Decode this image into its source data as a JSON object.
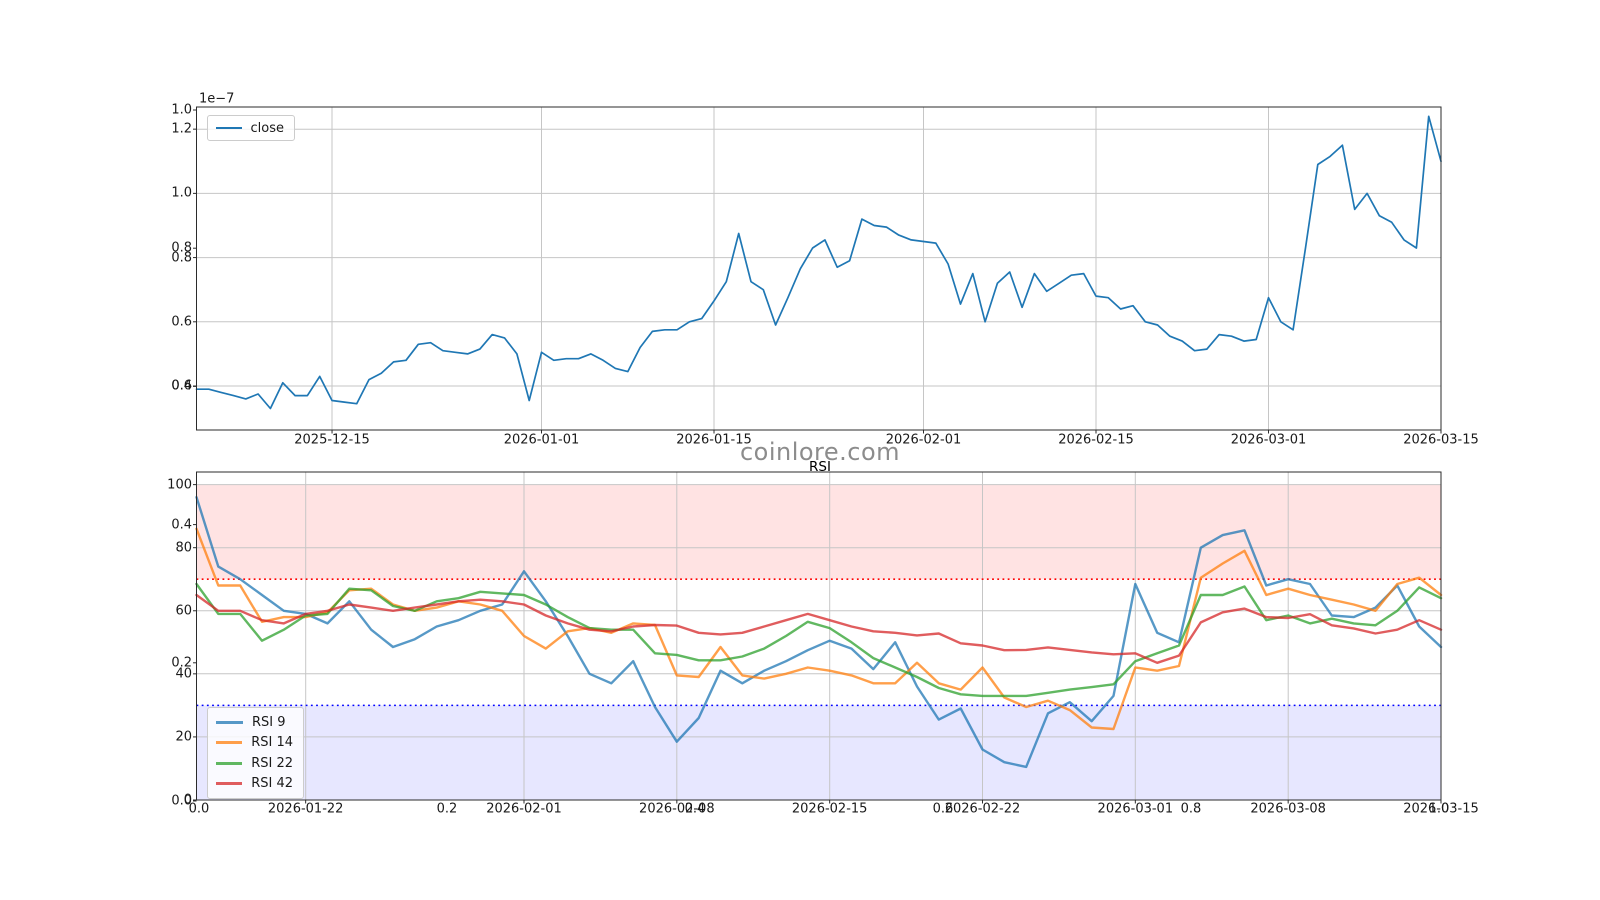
{
  "watermark": {
    "text": "coinlore.com",
    "color": "#8c8c8c"
  },
  "overlay_axis": {
    "ytick_labels": [
      "1.0",
      "0.8",
      "0.6",
      "0.4",
      "0.2",
      "0.0"
    ],
    "xtick_labels": [
      "0.0",
      "0.2",
      "0.4",
      "0.6",
      "0.8",
      "1.0"
    ]
  },
  "chart_data": [
    {
      "type": "line",
      "title": "",
      "xlabel": "",
      "ylabel": "",
      "offset_text": "1e−7",
      "legend_position": "upper left",
      "grid": true,
      "x_start": "2025-12-04",
      "x_end": "2026-03-15",
      "x_freq": "daily",
      "xtick_labels": [
        "2025-12-15",
        "2026-01-01",
        "2026-01-15",
        "2026-02-01",
        "2026-02-15",
        "2026-03-01",
        "2026-03-15"
      ],
      "xtick_day_offsets": [
        11,
        28,
        42,
        59,
        73,
        87,
        101
      ],
      "ytick_labels": [
        "0.4",
        "0.6",
        "0.8",
        "1.0",
        "1.2"
      ],
      "ytick_values": [
        0.4,
        0.6,
        0.8,
        1.0,
        1.2
      ],
      "ylim": [
        0.263,
        1.269
      ],
      "unit_note": "values are × 1e-7",
      "series": [
        {
          "name": "close",
          "color": "#1f77b4",
          "opacity": 1,
          "width": 1.7,
          "values": [
            0.39,
            0.39,
            0.38,
            0.37,
            0.36,
            0.375,
            0.33,
            0.41,
            0.37,
            0.37,
            0.43,
            0.355,
            0.35,
            0.345,
            0.42,
            0.44,
            0.475,
            0.48,
            0.53,
            0.535,
            0.51,
            0.505,
            0.5,
            0.515,
            0.56,
            0.55,
            0.5,
            0.355,
            0.505,
            0.48,
            0.485,
            0.485,
            0.5,
            0.48,
            0.455,
            0.445,
            0.52,
            0.57,
            0.575,
            0.575,
            0.6,
            0.61,
            0.665,
            0.725,
            0.875,
            0.725,
            0.7,
            0.59,
            0.675,
            0.765,
            0.83,
            0.855,
            0.77,
            0.79,
            0.92,
            0.9,
            0.895,
            0.87,
            0.855,
            0.85,
            0.845,
            0.78,
            0.655,
            0.75,
            0.6,
            0.72,
            0.755,
            0.645,
            0.75,
            0.695,
            0.72,
            0.745,
            0.75,
            0.68,
            0.675,
            0.64,
            0.65,
            0.6,
            0.59,
            0.555,
            0.54,
            0.51,
            0.515,
            0.56,
            0.555,
            0.54,
            0.545,
            0.675,
            0.6,
            0.575,
            0.83,
            1.09,
            1.115,
            1.15,
            0.95,
            1.0,
            0.93,
            0.91,
            0.855,
            0.83,
            1.24,
            1.1
          ]
        }
      ]
    },
    {
      "type": "line",
      "title": "RSI",
      "xlabel": "",
      "ylabel": "",
      "legend_position": "lower left",
      "grid": true,
      "x_start": "2026-01-17",
      "x_end": "2026-03-15",
      "x_freq": "daily",
      "xtick_labels": [
        "2026-01-22",
        "2026-02-01",
        "2026-02-08",
        "2026-02-15",
        "2026-02-22",
        "2026-03-01",
        "2026-03-08",
        "2026-03-15"
      ],
      "xtick_day_offsets": [
        5,
        15,
        22,
        29,
        36,
        43,
        50,
        57
      ],
      "ytick_labels": [
        "0",
        "20",
        "40",
        "60",
        "80",
        "100"
      ],
      "ytick_values": [
        0,
        20,
        40,
        60,
        80,
        100
      ],
      "ylim": [
        0,
        104
      ],
      "overbought": {
        "level": 70,
        "line_color": "#ff0000",
        "band_color": "rgba(255,0,0,0.11)"
      },
      "oversold": {
        "level": 30,
        "line_color": "#0000ff",
        "band_color": "rgba(0,0,255,0.095)"
      },
      "series": [
        {
          "name": "RSI 9",
          "color": "#1f77b4",
          "opacity": 0.75,
          "width": 2.4,
          "values": [
            96,
            74,
            70,
            65,
            60,
            59,
            56,
            63,
            54,
            48.5,
            51,
            55,
            57,
            60,
            62,
            72.5,
            63,
            52,
            40,
            37,
            44,
            29.5,
            18.5,
            26,
            41,
            37,
            41,
            44,
            47.5,
            50.5,
            48,
            41.5,
            50,
            36,
            25.5,
            29,
            16,
            12,
            10.5,
            27.5,
            31,
            25,
            33,
            68.5,
            53,
            50,
            80,
            84,
            85.5,
            68,
            70,
            68.5,
            58.5,
            58,
            61,
            68,
            55,
            48.5
          ]
        },
        {
          "name": "RSI 14",
          "color": "#ff7f0e",
          "opacity": 0.75,
          "width": 2.4,
          "values": [
            86,
            68,
            68,
            56.5,
            58,
            58,
            59.5,
            66.5,
            67,
            62,
            60,
            61,
            63,
            62,
            60,
            52,
            48,
            53.5,
            54.5,
            53,
            56,
            55.5,
            39.5,
            39,
            48.5,
            39.5,
            38.5,
            40,
            42,
            41,
            39.5,
            37,
            37,
            43.5,
            37,
            35,
            42,
            32.5,
            29.5,
            31.5,
            28.5,
            23,
            22.5,
            42,
            41,
            42.5,
            70.5,
            75,
            79,
            65,
            67,
            65,
            63.5,
            62,
            60,
            68.5,
            70.5,
            65
          ]
        },
        {
          "name": "RSI 22",
          "color": "#2ca02c",
          "opacity": 0.75,
          "width": 2.4,
          "values": [
            68.5,
            59,
            59,
            50.5,
            54,
            58.5,
            59,
            67,
            66.5,
            61.5,
            60,
            63,
            64,
            66,
            65.5,
            65,
            62,
            58,
            54.5,
            54,
            54,
            46.5,
            46,
            44.3,
            44.3,
            45.5,
            48,
            52,
            56.5,
            54.5,
            50,
            45,
            42,
            39,
            35.5,
            33.5,
            33,
            33,
            33,
            34,
            35,
            35.8,
            36.7,
            44,
            46.5,
            49,
            65,
            65,
            67.7,
            57,
            58.5,
            56,
            57.5,
            56,
            55.4,
            60,
            67.4,
            64
          ]
        },
        {
          "name": "RSI 42",
          "color": "#d62728",
          "opacity": 0.75,
          "width": 2.4,
          "values": [
            65,
            60,
            60,
            57,
            56,
            59,
            60,
            62,
            61,
            60,
            61,
            62,
            63,
            63.5,
            63,
            62,
            58.5,
            56,
            54,
            53.5,
            55,
            55.5,
            55.3,
            53,
            52.5,
            53,
            55,
            57,
            59,
            57,
            55,
            53.5,
            53,
            52.2,
            52.8,
            49.7,
            49,
            47.5,
            47.6,
            48.4,
            47.6,
            46.8,
            46.2,
            46.5,
            43.5,
            45.8,
            56.3,
            59.5,
            60.7,
            58,
            57.7,
            58.9,
            55.4,
            54.4,
            52.8,
            54,
            57,
            54
          ]
        }
      ]
    }
  ]
}
